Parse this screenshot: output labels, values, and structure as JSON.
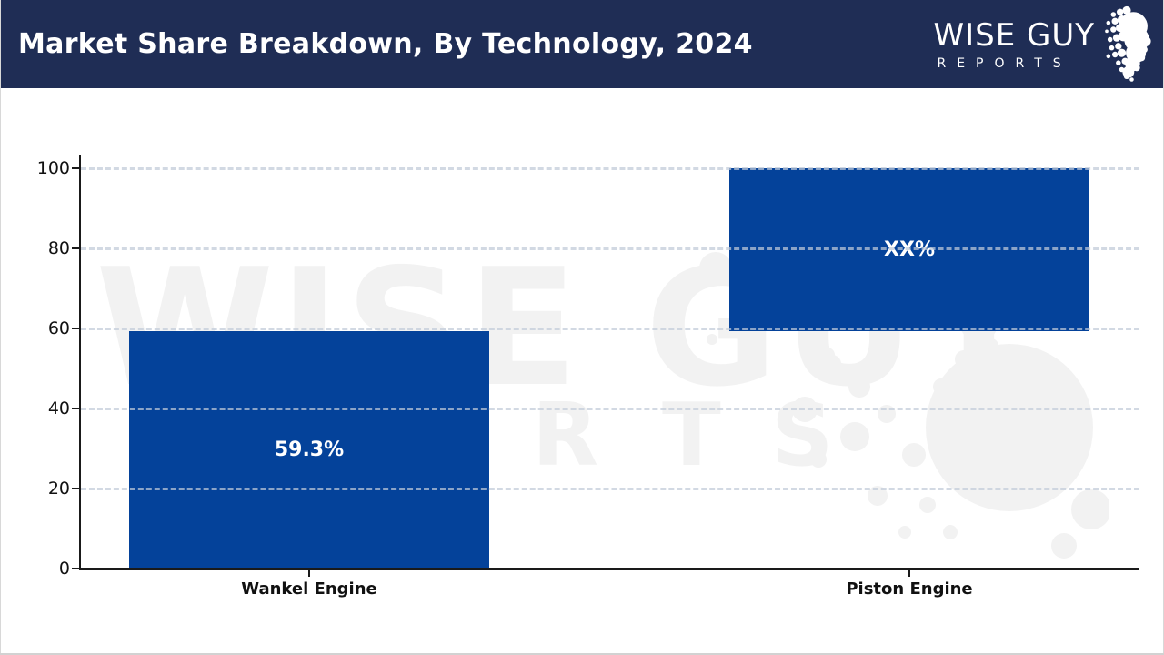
{
  "header": {
    "title": "Market Share Breakdown, By Technology, 2024",
    "brand_line1": "WISE GUY",
    "brand_line2": "REPORTS",
    "bg_color": "#1f2d55"
  },
  "chart_data": {
    "type": "bar",
    "subtype": "floating-percentage-bars",
    "title": "Market Share Breakdown, By Technology, 2024",
    "categories": [
      "Wankel Engine",
      "Piston Engine"
    ],
    "bars": [
      {
        "category": "Wankel Engine",
        "start": 0,
        "end": 59.3,
        "label": "59.3%"
      },
      {
        "category": "Piston Engine",
        "start": 59.3,
        "end": 100,
        "label": "XX%"
      }
    ],
    "xlabel": "",
    "ylabel": "",
    "ylim": [
      0,
      100
    ],
    "yticks": [
      0,
      20,
      40,
      60,
      80,
      100
    ],
    "grid": "horizontal-dashed",
    "legend": "none",
    "bar_color": "#04429a",
    "bar_label_color": "#ffffff",
    "axis_color": "#1a1a1a"
  },
  "watermark": {
    "line1": "WISE GUY",
    "letters": [
      "R",
      "T",
      "S"
    ],
    "color": "#f2f2f2"
  }
}
